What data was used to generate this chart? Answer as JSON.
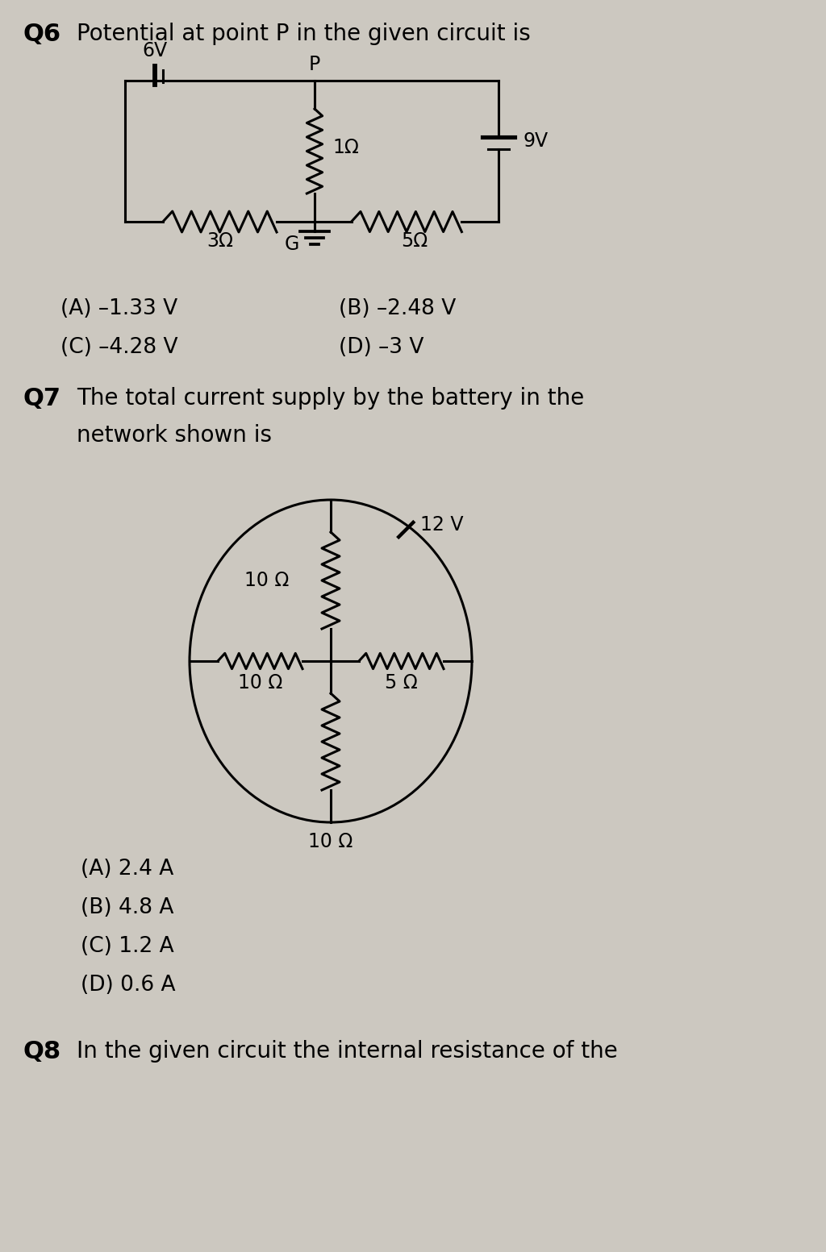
{
  "bg_color": "#ccc8c0",
  "text_color": "#000000",
  "fig_width": 10.24,
  "fig_height": 15.53,
  "q6_label": "Q6",
  "q6_text": "Potential at point P in the given circuit is",
  "q6_voltage_6v": "6V",
  "q6_voltage_9v": "9V",
  "q6_res1": "1Ω",
  "q6_res3": "3Ω",
  "q6_res5": "5Ω",
  "q6_point_p": "P",
  "q6_ground": "G",
  "q6_optA": "(A) –1.33 V",
  "q6_optB": "(B) –2.48 V",
  "q6_optC": "(C) –4.28 V",
  "q6_optD": "(D) –3 V",
  "q7_label": "Q7",
  "q7_line1": "The total current supply by the battery in the",
  "q7_line2": "network shown is",
  "q7_res_center": "10 Ω",
  "q7_res_left": "10 Ω",
  "q7_res_right": "5 Ω",
  "q7_res_bot": "10 Ω",
  "q7_battery": "12 V",
  "q7_optA": "(A) 2.4 A",
  "q7_optB": "(B) 4.8 A",
  "q7_optC": "(C) 1.2 A",
  "q7_optD": "(D) 0.6 A",
  "q8_label": "Q8",
  "q8_text": "In the given circuit the internal resistance of the"
}
